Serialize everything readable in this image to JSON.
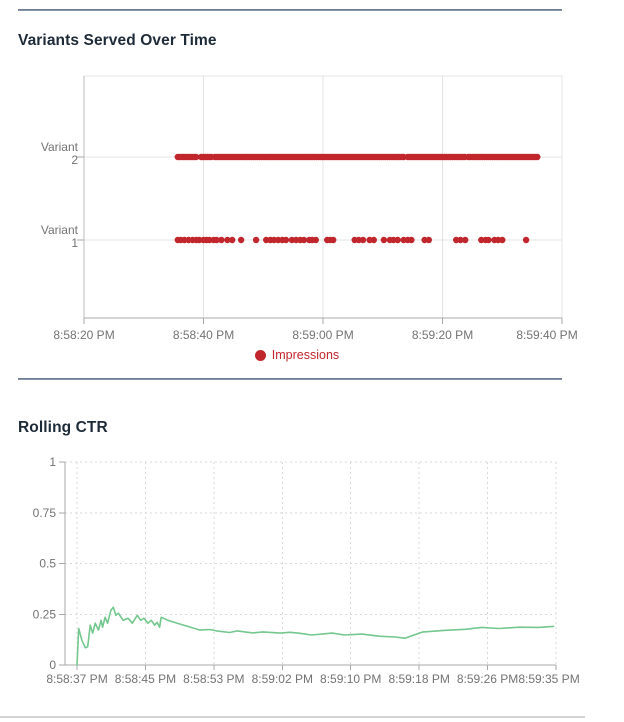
{
  "colors": {
    "impressions_red": "#c0262c",
    "ctr_line_green": "#74c78e",
    "title_navy": "#1d2a38",
    "axis_label_gray": "#737373",
    "section_divider_slate_dark": "#5f718a",
    "section_divider_slate_light": "#94a1b2",
    "bottom_divider_gray": "#d4d4d4"
  },
  "chart_data": [
    {
      "type": "scatter",
      "title": "Variants Served Over Time",
      "legend": {
        "label": "Impressions",
        "position": "bottom",
        "marker": "circle",
        "color": "#c0262c"
      },
      "y_categories": [
        "Variant 2",
        "Variant 1"
      ],
      "x_tick_labels": [
        "8:58:20 PM",
        "8:58:40 PM",
        "8:59:00 PM",
        "8:59:20 PM",
        "8:59:40 PM"
      ],
      "x_start_time": "8:58:20 PM",
      "x_span_seconds": 80,
      "grid": "solid",
      "series": [
        {
          "name": "Impressions",
          "variant": "Variant 2",
          "dot_step_seconds": 0.34,
          "dense_runs_seconds": [
            [
              15.7,
              18.9
            ],
            [
              19.6,
              21.4
            ],
            [
              21.9,
              53.8
            ],
            [
              54.2,
              63.9
            ],
            [
              64.3,
              76.0
            ]
          ]
        },
        {
          "name": "Impressions",
          "variant": "Variant 1",
          "impression_times_seconds": [
            15.7,
            16.2,
            16.8,
            17.5,
            18.2,
            18.8,
            19.3,
            20,
            20.5,
            21,
            21.7,
            22.2,
            23,
            24,
            24.8,
            26.3,
            28.8,
            30.5,
            31.2,
            31.8,
            32.5,
            33.2,
            33.8,
            34.8,
            35.5,
            36.2,
            36.8,
            37.7,
            38.2,
            38.8,
            40.7,
            41.2,
            41.7,
            45.3,
            46,
            46.7,
            47.8,
            48.5,
            50.2,
            51.2,
            51.8,
            52.5,
            53.5,
            54.2,
            54.8,
            57,
            57.7,
            62.3,
            63,
            63.8,
            66.5,
            67.2,
            67.7,
            68.7,
            69.3,
            70,
            74
          ]
        }
      ]
    },
    {
      "type": "line",
      "title": "Rolling CTR",
      "line_color": "#74c78e",
      "x_tick_labels": [
        "8:58:37 PM",
        "8:58:45 PM",
        "8:58:53 PM",
        "8:59:02 PM",
        "8:59:10 PM",
        "8:59:18 PM",
        "8:59:26 PM",
        "8:59:35 PM"
      ],
      "y_tick_labels": [
        "0",
        "0.25",
        "0.5",
        "0.75",
        "1"
      ],
      "ylim": [
        0,
        1
      ],
      "x_start_time": "8:58:37 PM",
      "x_span_seconds": 58,
      "grid": "dashed",
      "points": [
        [
          0,
          0
        ],
        [
          0.2,
          0.18
        ],
        [
          0.6,
          0.12
        ],
        [
          1,
          0.085
        ],
        [
          1.3,
          0.09
        ],
        [
          1.6,
          0.196
        ],
        [
          1.9,
          0.157
        ],
        [
          2.2,
          0.206
        ],
        [
          2.6,
          0.172
        ],
        [
          2.9,
          0.22
        ],
        [
          3.1,
          0.186
        ],
        [
          3.4,
          0.235
        ],
        [
          3.7,
          0.206
        ],
        [
          4.1,
          0.27
        ],
        [
          4.4,
          0.284
        ],
        [
          4.7,
          0.245
        ],
        [
          5,
          0.255
        ],
        [
          5.6,
          0.22
        ],
        [
          6.2,
          0.23
        ],
        [
          6.7,
          0.206
        ],
        [
          7.3,
          0.245
        ],
        [
          7.7,
          0.22
        ],
        [
          8.1,
          0.23
        ],
        [
          8.6,
          0.206
        ],
        [
          9,
          0.22
        ],
        [
          9.4,
          0.196
        ],
        [
          9.7,
          0.21
        ],
        [
          10,
          0.186
        ],
        [
          10.2,
          0.235
        ],
        [
          10.6,
          0.228
        ],
        [
          11,
          0.22
        ],
        [
          11.8,
          0.21
        ],
        [
          12.6,
          0.2
        ],
        [
          13.4,
          0.19
        ],
        [
          14.9,
          0.172
        ],
        [
          16.1,
          0.175
        ],
        [
          16.9,
          0.168
        ],
        [
          18.5,
          0.16
        ],
        [
          19.4,
          0.168
        ],
        [
          21.3,
          0.158
        ],
        [
          22.5,
          0.163
        ],
        [
          24.6,
          0.157
        ],
        [
          25.8,
          0.161
        ],
        [
          27,
          0.156
        ],
        [
          28.4,
          0.148
        ],
        [
          30.9,
          0.157
        ],
        [
          32.4,
          0.148
        ],
        [
          34.5,
          0.152
        ],
        [
          36.6,
          0.142
        ],
        [
          38.5,
          0.138
        ],
        [
          39.7,
          0.132
        ],
        [
          41.8,
          0.162
        ],
        [
          44.6,
          0.171
        ],
        [
          47,
          0.176
        ],
        [
          49,
          0.185
        ],
        [
          51.1,
          0.18
        ],
        [
          53.5,
          0.186
        ],
        [
          55.9,
          0.185
        ],
        [
          57.7,
          0.19
        ]
      ]
    }
  ]
}
